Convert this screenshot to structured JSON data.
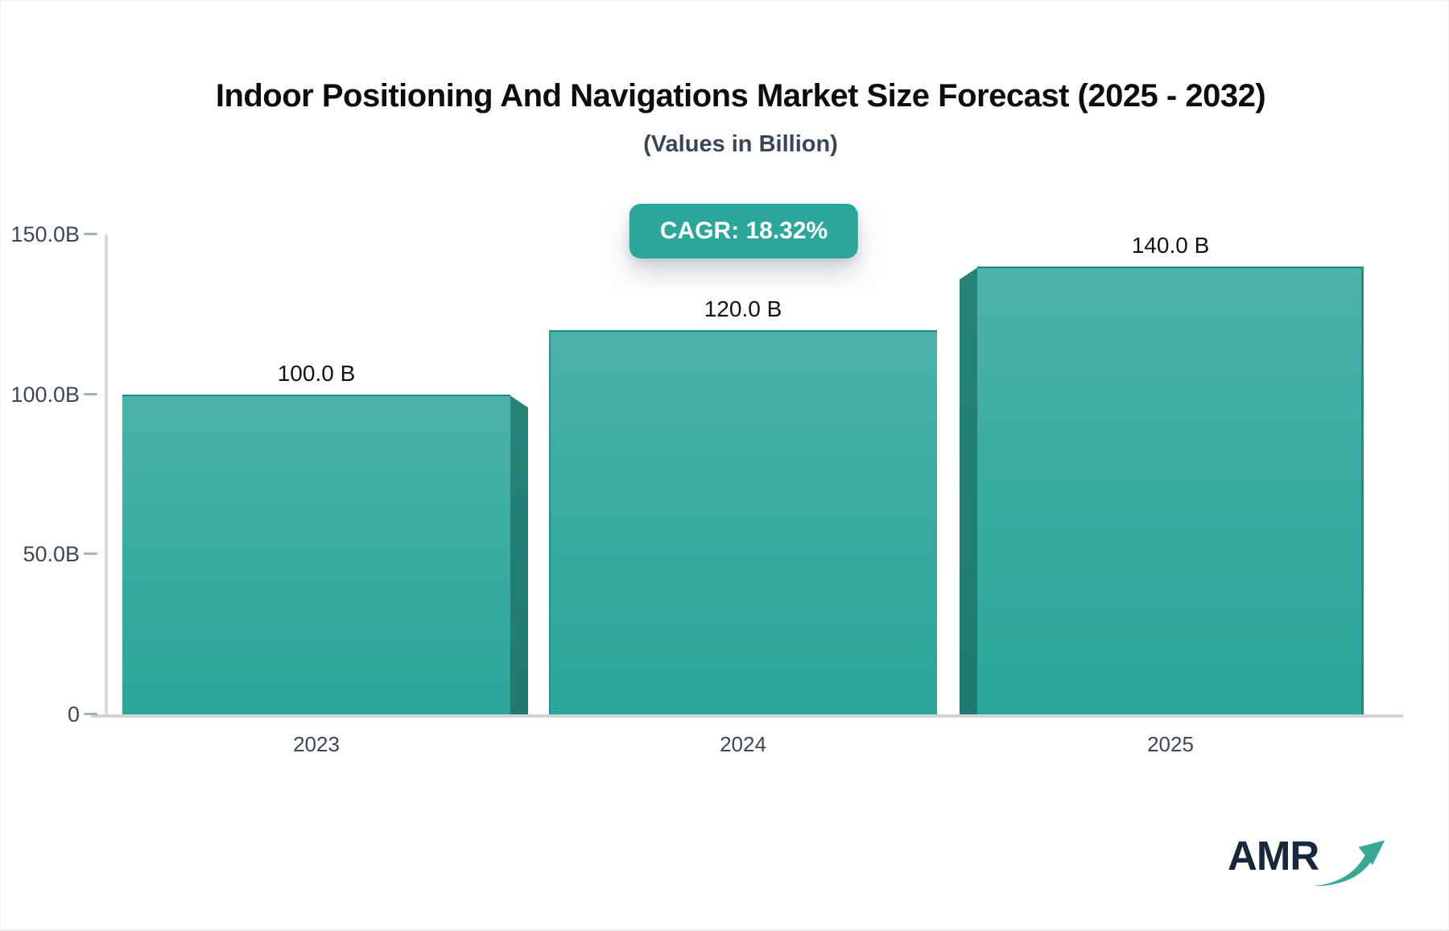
{
  "page": {
    "title": "Indoor Positioning And Navigations Market Size Forecast (2025 - 2032)",
    "subtitle": "(Values in Billion)",
    "cagr_badge": "CAGR: 18.32%",
    "logo_text": "AMR"
  },
  "colors": {
    "bar_gradient_top": "#4cb2aa",
    "bar_gradient_bottom": "#2ba69a",
    "bar_edge": "#1b8c81",
    "bar_side_face": "#20796f",
    "badge_background": "#2aa79a",
    "badge_text": "#ffffff",
    "axis_line": "#d2d6dc",
    "tick_dash": "#9db7b3",
    "axis_text": "#3c4855",
    "title_text": "#0b0d11",
    "subtitle_text": "#3a4653",
    "logo_navy": "#16283c",
    "logo_arrow_teal": "#38a796"
  },
  "chart_data": {
    "type": "bar",
    "title": "Indoor Positioning And Navigations Market Size Forecast (2025 - 2032)",
    "subtitle": "(Values in Billion)",
    "annotation": "CAGR: 18.32%",
    "categories": [
      "2023",
      "2024",
      "2025"
    ],
    "values": [
      100.0,
      120.0,
      140.0
    ],
    "value_labels": [
      "100.0 B",
      "120.0 B",
      "140.0 B"
    ],
    "unit": "Billion",
    "xlabel": "",
    "ylabel": "",
    "ylim": [
      0,
      150
    ],
    "yticks": [
      {
        "value": 150,
        "label": "150.0B"
      },
      {
        "value": 100,
        "label": "100.0B"
      },
      {
        "value": 50,
        "label": "50.0B"
      },
      {
        "value": 0,
        "label": "0"
      }
    ],
    "grid": false,
    "legend": false,
    "bar_color": "teal-gradient",
    "style_note": "pseudo-3D extruded bars, first bar extruded right, last bar extruded left"
  }
}
